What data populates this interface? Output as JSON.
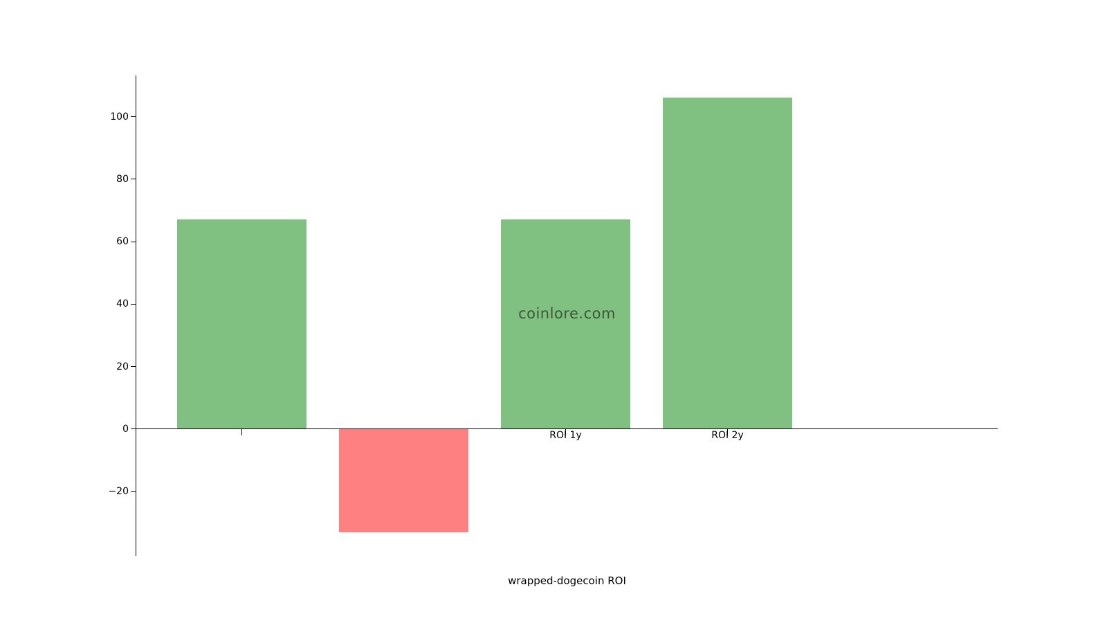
{
  "watermark": {
    "text": "coinlore.com",
    "color": "rgba(0,0,0,0.55)"
  },
  "chart_data": {
    "type": "bar",
    "title": "",
    "xlabel": "wrapped-dogecoin ROI",
    "ylabel": "",
    "categories": [
      "",
      "",
      "ROI 1y",
      "ROI 2y"
    ],
    "values": [
      67,
      -33,
      67,
      106
    ],
    "series_colors": {
      "positive": "#80c080",
      "negative": "#ff8080"
    },
    "y_ticks": [
      100,
      80,
      60,
      40,
      20,
      0,
      -20
    ],
    "ylim": [
      -40.6,
      113.2
    ],
    "grid": false,
    "legend": "none",
    "axis_color": "#000000",
    "tick_label_color": "#000000",
    "bar_value_notes": "green bars positive ROI, red bar negative ROI"
  }
}
